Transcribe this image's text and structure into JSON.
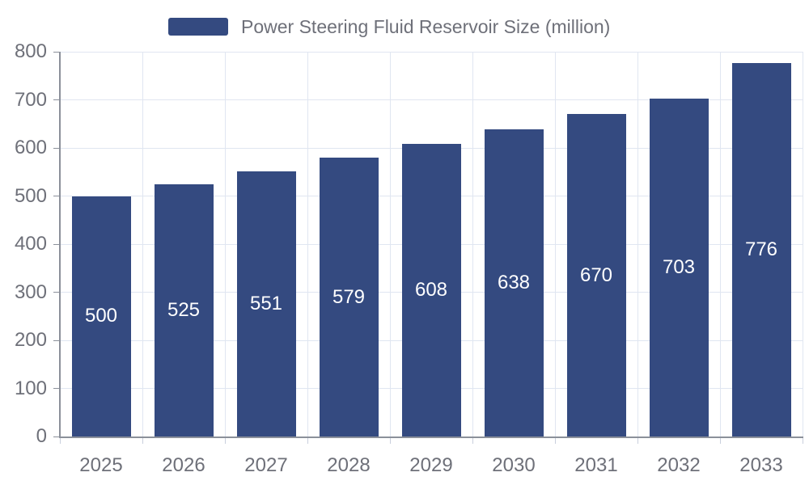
{
  "chart_data": {
    "type": "bar",
    "title": "",
    "legend": {
      "label": "Power Steering Fluid Reservoir Size (million)",
      "position": "top"
    },
    "series_name": "Power Steering Fluid Reservoir Size (million)",
    "categories": [
      "2025",
      "2026",
      "2027",
      "2028",
      "2029",
      "2030",
      "2031",
      "2032",
      "2033"
    ],
    "values": [
      500,
      525,
      551,
      579,
      608,
      638,
      670,
      703,
      776
    ],
    "value_labels": [
      "500",
      "525",
      "551",
      "579",
      "608",
      "638",
      "670",
      "703",
      "776"
    ],
    "value_label_placement": "inside-center",
    "xlabel": "",
    "ylabel": "",
    "ylim": [
      0,
      800
    ],
    "ytick_step": 100,
    "ytick_labels": [
      "0",
      "100",
      "200",
      "300",
      "400",
      "500",
      "600",
      "700",
      "800"
    ],
    "grid": true,
    "colors": {
      "bar": "#344a80",
      "value_label": "#ffffff",
      "axis_label": "#6e7079",
      "legend_label": "#6e7079",
      "gridline": "#e0e6f1",
      "axis_line": "#8b909a",
      "category_tick": "#c9cfdd",
      "background": "#ffffff"
    }
  }
}
